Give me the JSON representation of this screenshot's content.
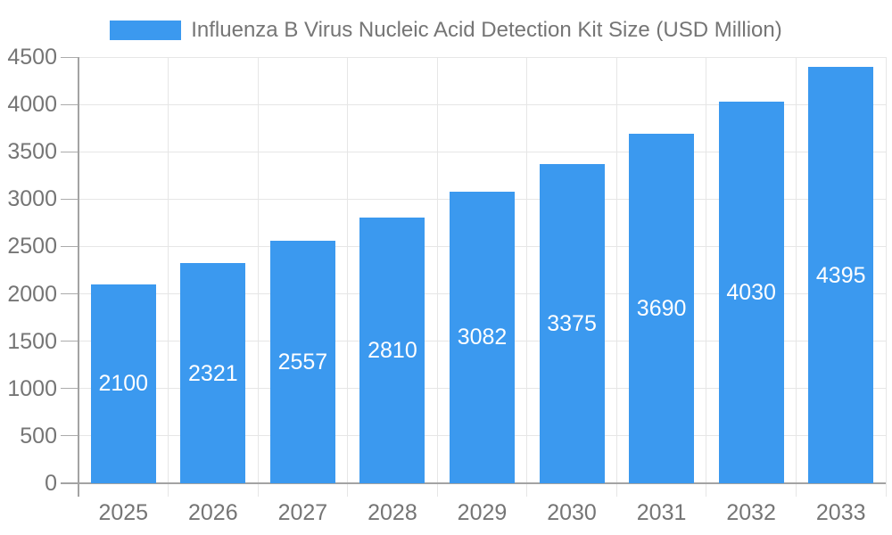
{
  "chart_data": {
    "type": "bar",
    "title": "Influenza B Virus Nucleic Acid Detection Kit Size (USD Million)",
    "series": [
      {
        "name": "Influenza B Virus Nucleic Acid Detection Kit Size (USD Million)",
        "values": [
          2100,
          2321,
          2557,
          2810,
          3082,
          3375,
          3690,
          4030,
          4395
        ]
      }
    ],
    "categories": [
      "2025",
      "2026",
      "2027",
      "2028",
      "2029",
      "2030",
      "2031",
      "2032",
      "2033"
    ],
    "values": [
      2100,
      2321,
      2557,
      2810,
      3082,
      3375,
      3690,
      4030,
      4395
    ],
    "value_labels": [
      "2100",
      "2321",
      "2557",
      "2810",
      "3082",
      "3375",
      "3690",
      "4030",
      "4395"
    ],
    "xlabel": "",
    "ylabel": "",
    "ylim": [
      0,
      4500
    ],
    "ytick_step": 500,
    "yticks": [
      "0",
      "500",
      "1000",
      "1500",
      "2000",
      "2500",
      "3000",
      "3500",
      "4000",
      "4500"
    ],
    "grid": true,
    "legend_position": "top",
    "colors": {
      "bar": "#3B99EF",
      "axis_line": "#A3A3A3",
      "grid_line": "#E6E6E6",
      "tick_line": "#ABABAB",
      "label_text": "#757575",
      "value_text": "#FFFFFF",
      "background": "#FFFFFF"
    }
  }
}
